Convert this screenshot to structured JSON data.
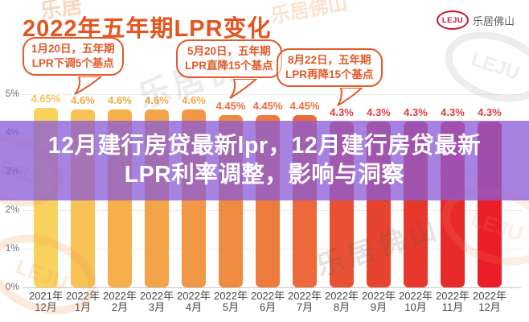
{
  "header": {
    "title": "2022年五年期LPR变化",
    "logo_brand": "LEJU",
    "logo_site": "乐居佛山"
  },
  "callouts": [
    {
      "line1": "1月20日，五年期",
      "line2": "LPR下调5个基点"
    },
    {
      "line1": "5月20日，五年期",
      "line2": "LPR直降15个基点"
    },
    {
      "line1": "8月22日，五年期",
      "line2": "LPR再降15个基点"
    }
  ],
  "overlay": {
    "line1": "12月建行房贷最新lpr，12月建行房贷最新",
    "line2": "LPR利率调整，影响与洞察",
    "bg_color": "#8A5CD6",
    "text_color": "#FFFFFF"
  },
  "chart_data": {
    "type": "bar",
    "title": "2022年五年期LPR变化",
    "xlabel": "",
    "ylabel": "",
    "ylim": [
      0,
      5
    ],
    "grid": "horizontal-dotted",
    "categories": [
      {
        "year": "2021年",
        "month": "12月"
      },
      {
        "year": "2022年",
        "month": "1月"
      },
      {
        "year": "2022年",
        "month": "2月"
      },
      {
        "year": "2022年",
        "month": "3月"
      },
      {
        "year": "2022年",
        "month": "4月"
      },
      {
        "year": "2022年",
        "month": "5月"
      },
      {
        "year": "2022年",
        "month": "6月"
      },
      {
        "year": "2022年",
        "month": "7月"
      },
      {
        "year": "2022年",
        "month": "8月"
      },
      {
        "year": "2022年",
        "month": "9月"
      },
      {
        "year": "2022年",
        "month": "10月"
      },
      {
        "year": "2022年",
        "month": "11月"
      },
      {
        "year": "2022年",
        "month": "12月"
      }
    ],
    "values": [
      4.65,
      4.6,
      4.6,
      4.6,
      4.6,
      4.45,
      4.45,
      4.45,
      4.3,
      4.3,
      4.3,
      4.3,
      4.3
    ],
    "value_labels": [
      "4.65%",
      "4.6%",
      "4.6%",
      "4.6%",
      "4.6%",
      "4.45%",
      "4.45%",
      "4.45%",
      "4.3%",
      "4.3%",
      "4.3%",
      "4.3%",
      "4.3%"
    ],
    "bar_colors": [
      "#F9D25E",
      "#F8C254",
      "#F5B04C",
      "#F3A348",
      "#F19745",
      "#EF8A41",
      "#ED7B3E",
      "#EB693A",
      "#E95134",
      "#E74430",
      "#E6382C",
      "#E82A2A",
      "#EA1D28"
    ],
    "label_colors": [
      "#F4C35A",
      "#F2A845",
      "#F2A845",
      "#F2A845",
      "#F2A845",
      "#E96B3C",
      "#E96B3C",
      "#E96B3C",
      "#E03C3A",
      "#E03C3A",
      "#E03C3A",
      "#E03C3A",
      "#E03C3A"
    ],
    "yticks": [
      {
        "label": "0%",
        "value": 0
      },
      {
        "label": "1%",
        "value": 1
      },
      {
        "label": "2%",
        "value": 2
      },
      {
        "label": "3%",
        "value": 3
      },
      {
        "label": "4%",
        "value": 4
      },
      {
        "label": "5%",
        "value": 5
      }
    ]
  },
  "watermarks": [
    {
      "kind": "text",
      "value": "乐居",
      "cls": "wm-top-left"
    },
    {
      "kind": "text",
      "value": "乐居佛山",
      "cls": "wm-top-mid"
    },
    {
      "kind": "text",
      "value": "乐居佛山",
      "cls": "wm-mid"
    },
    {
      "kind": "text",
      "value": "乐居佛山",
      "cls": "wm-bars"
    },
    {
      "kind": "oval",
      "value": "LEJU",
      "cls": "wm-oval-right"
    },
    {
      "kind": "oval",
      "value": "LEJU",
      "cls": "wm-oval-left"
    },
    {
      "kind": "oval",
      "value": "LEJU",
      "cls": "wm-oval-bottom"
    },
    {
      "kind": "oval",
      "value": "LEJU",
      "cls": "wm-oval-br"
    }
  ]
}
